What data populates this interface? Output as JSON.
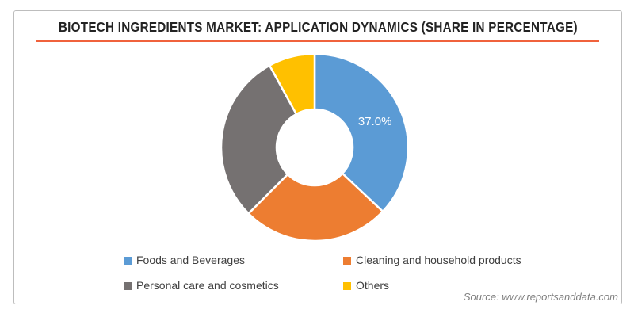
{
  "card": {
    "title": "BIOTECH INGREDIENTS MARKET: APPLICATION DYNAMICS (SHARE IN PERCENTAGE)",
    "source": "Source: www.reportsanddata.com"
  },
  "colors": {
    "blue": "#5B9BD5",
    "orange": "#ED7D31",
    "gray": "#757171",
    "yellow": "#FFC000",
    "title_text": "#232323",
    "title_underline": "#F0623C",
    "card_border": "#BDBDBD",
    "legend_text": "#3F3F3F",
    "source_text": "#7F7F7F",
    "slice_label": "#FFFFFF",
    "slice_gap": "#FFFFFF"
  },
  "chart_data": {
    "type": "pie",
    "subtype": "donut",
    "title": "BIOTECH INGREDIENTS MARKET: APPLICATION DYNAMICS (SHARE IN PERCENTAGE)",
    "unit": "percent",
    "categories": [
      "Foods and Beverages",
      "Cleaning and household products",
      "Personal care and cosmetics",
      "Others"
    ],
    "values": [
      37.0,
      25.5,
      29.5,
      8.0
    ],
    "labels": [
      "37.0%",
      "",
      "",
      ""
    ],
    "colors": [
      "#5B9BD5",
      "#ED7D31",
      "#757171",
      "#FFC000"
    ],
    "start_angle_deg": 0,
    "direction": "clockwise",
    "inner_radius_ratio": 0.41,
    "grid": false,
    "legend_position": "bottom"
  },
  "legend": {
    "items": [
      {
        "label": "Foods and Beverages",
        "color": "#5B9BD5"
      },
      {
        "label": "Cleaning and household products",
        "color": "#ED7D31"
      },
      {
        "label": "Personal care and cosmetics",
        "color": "#757171"
      },
      {
        "label": "Others",
        "color": "#FFC000"
      }
    ]
  }
}
